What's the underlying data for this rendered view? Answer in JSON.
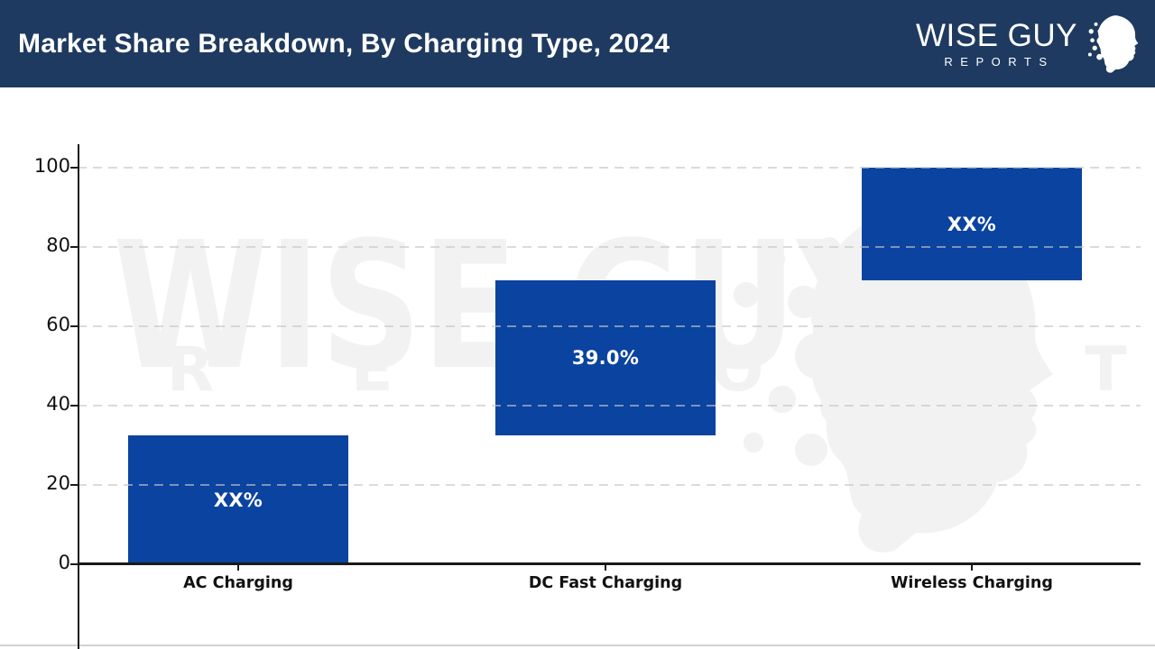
{
  "header": {
    "title": "Market Share Breakdown, By Charging Type, 2024",
    "logo": {
      "name": "WISE GUY",
      "tagline": "REPORTS"
    }
  },
  "watermark": {
    "name": "WISE GUY",
    "tagline": "R E P O R T S"
  },
  "chart_data": {
    "type": "bar",
    "variant": "waterfall",
    "title": "Market Share Breakdown, By Charging Type, 2024",
    "categories": [
      "AC Charging",
      "DC Fast Charging",
      "Wireless Charging"
    ],
    "series": [
      {
        "name": "Market Share (%)",
        "values": [
          32.5,
          39.0,
          28.5
        ],
        "baselines": [
          0,
          32.5,
          71.5
        ]
      }
    ],
    "bar_labels": [
      "XX%",
      "39.0%",
      "XX%"
    ],
    "y_ticks": [
      0,
      20,
      40,
      60,
      80,
      100
    ],
    "ylim": [
      0,
      106
    ],
    "xlabel": "",
    "ylabel": "",
    "legend": "none",
    "grid": "horizontal-dashed",
    "colors": {
      "bar": "#0a43a0",
      "header_bg": "#1f3a60",
      "grid": "#c5c5c5",
      "axis": "#1a1a1a",
      "watermark": "#f2f2f2",
      "value_label": "#ffffff"
    }
  }
}
